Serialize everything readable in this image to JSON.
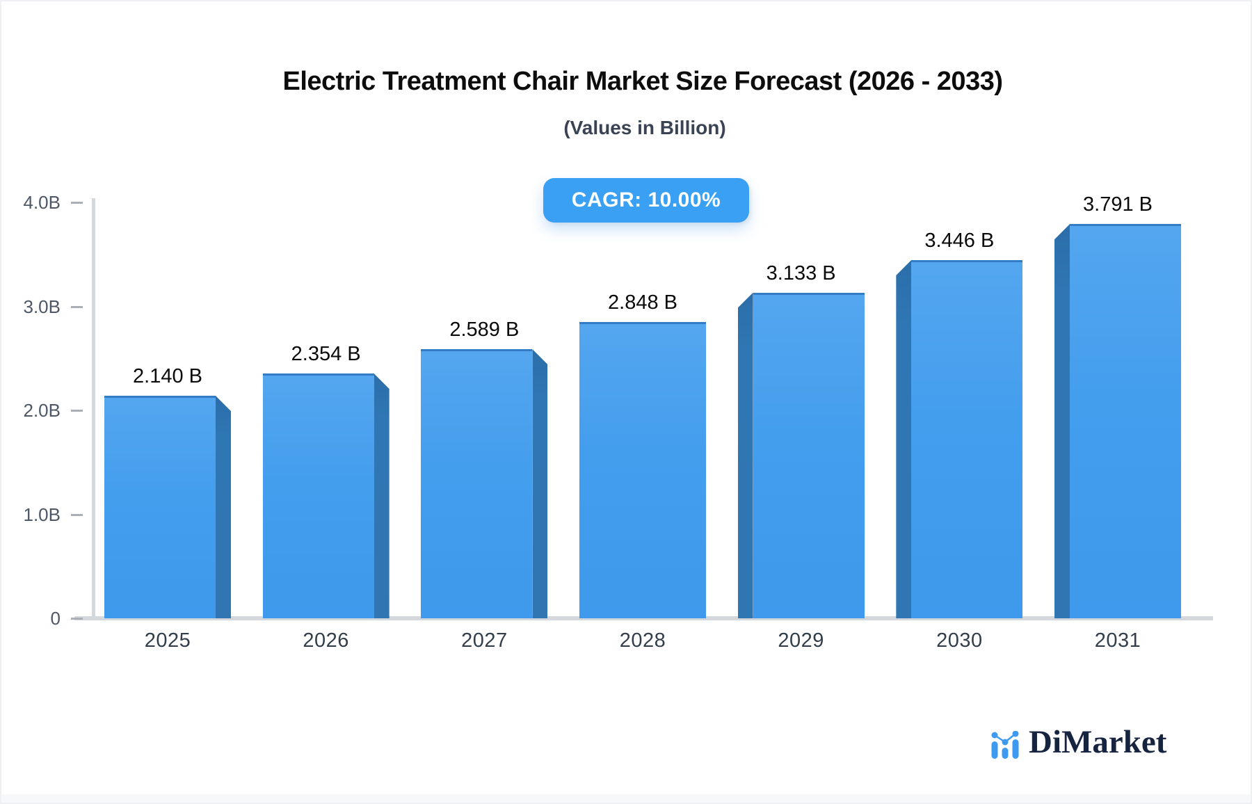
{
  "header": {
    "title": "Electric Treatment Chair Market Size Forecast (2026 - 2033)",
    "subtitle": "(Values in Billion)"
  },
  "badge": {
    "label": "CAGR: 10.00%"
  },
  "chart_data": {
    "type": "bar",
    "title": "Electric Treatment Chair Market Size Forecast (2026 - 2033)",
    "subtitle": "(Values in Billion)",
    "cagr_label": "CAGR: 10.00%",
    "unit": "Billion",
    "categories": [
      "2025",
      "2026",
      "2027",
      "2028",
      "2029",
      "2030",
      "2031"
    ],
    "values": [
      2.14,
      2.354,
      2.589,
      2.848,
      3.133,
      3.446,
      3.791
    ],
    "value_labels": [
      "2.140 B",
      "2.354 B",
      "2.589 B",
      "2.848 B",
      "3.133 B",
      "3.446 B",
      "3.791 B"
    ],
    "ylim": [
      0,
      4.0
    ],
    "yticks": [
      {
        "value": 4.0,
        "label": "4.0B"
      },
      {
        "value": 3.0,
        "label": "3.0B"
      },
      {
        "value": 2.0,
        "label": "2.0B"
      },
      {
        "value": 1.0,
        "label": "1.0B"
      },
      {
        "value": 0.0,
        "label": "0"
      }
    ],
    "grid": false,
    "legend": false,
    "style": "3d-beveled-bars",
    "bar_face_color_top": "#54a6ef",
    "bar_face_color_bottom": "#3f99ec",
    "bar_side_color": "#2f76b2"
  },
  "footer": {
    "brand": "DiMarket",
    "icon": "mini-bar-chart-logo-icon",
    "icon_color": "#3d9af0",
    "text_color": "#172440"
  },
  "colors": {
    "badge_bg": "#3aa0f3",
    "axis_line": "#d4d8dd",
    "tick_text": "#4d5765",
    "title_text": "#0d0d0d",
    "subtitle_text": "#3a4353"
  }
}
